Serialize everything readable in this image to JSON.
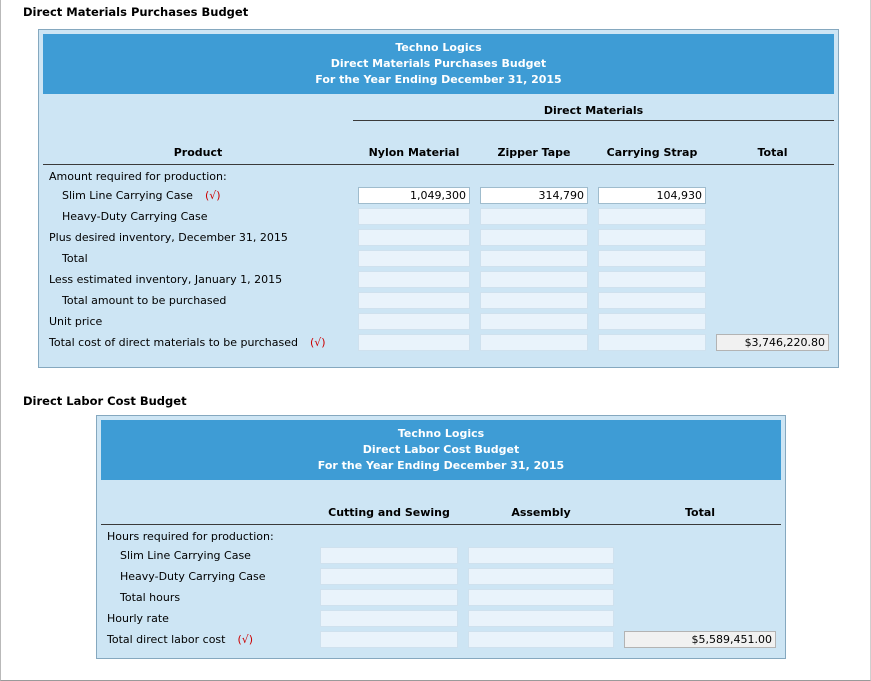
{
  "colors": {
    "statement_header_blue": "#3e9cd5",
    "panel_light_blue": "#cde5f4",
    "check_red": "#cc0000",
    "input_cell_blue": "#e9f3fb"
  },
  "shared": {
    "check_symbol": "(√)"
  },
  "materials_budget": {
    "section_title": "Direct Materials Purchases Budget",
    "statement_header": {
      "company": "Techno Logics",
      "title": "Direct Materials Purchases Budget",
      "period": "For the Year Ending December 31, 2015"
    },
    "group_header": "Direct Materials",
    "columns": [
      "Product",
      "Nylon Material",
      "Zipper Tape",
      "Carrying Strap",
      "Total"
    ],
    "rows": [
      {
        "label": "Amount required for production:",
        "indent": 0,
        "inputs": null
      },
      {
        "label": "Slim Line Carrying Case",
        "indent": 1,
        "check": true,
        "inputs": [
          "1,049,300",
          "314,790",
          "104,930"
        ]
      },
      {
        "label": "Heavy-Duty Carrying Case",
        "indent": 1,
        "inputs": [
          "",
          "",
          ""
        ]
      },
      {
        "label": "Plus desired inventory, December 31, 2015",
        "indent": 0,
        "inputs": [
          "",
          "",
          ""
        ]
      },
      {
        "label": "Total",
        "indent": 1,
        "inputs": [
          "",
          "",
          ""
        ]
      },
      {
        "label": "Less estimated inventory, January 1, 2015",
        "indent": 0,
        "inputs": [
          "",
          "",
          ""
        ]
      },
      {
        "label": "Total amount to be purchased",
        "indent": 1,
        "inputs": [
          "",
          "",
          ""
        ]
      },
      {
        "label": "Unit price",
        "indent": 0,
        "inputs": [
          "",
          "",
          ""
        ]
      },
      {
        "label": "Total cost of direct materials to be purchased",
        "indent": 0,
        "check": true,
        "inputs": [
          "",
          "",
          ""
        ],
        "total": "$3,746,220.80"
      }
    ]
  },
  "labor_budget": {
    "section_title": "Direct Labor Cost Budget",
    "statement_header": {
      "company": "Techno Logics",
      "title": "Direct Labor Cost Budget",
      "period": "For the Year Ending December 31, 2015"
    },
    "columns": [
      "",
      "Cutting and Sewing",
      "Assembly",
      "Total"
    ],
    "rows": [
      {
        "label": "Hours required for production:",
        "indent": 0,
        "inputs": null
      },
      {
        "label": "Slim Line Carrying Case",
        "indent": 1,
        "inputs": [
          "",
          ""
        ]
      },
      {
        "label": "Heavy-Duty Carrying Case",
        "indent": 1,
        "inputs": [
          "",
          ""
        ]
      },
      {
        "label": "Total hours",
        "indent": 1,
        "inputs": [
          "",
          ""
        ]
      },
      {
        "label": "Hourly rate",
        "indent": 0,
        "inputs": [
          "",
          ""
        ]
      },
      {
        "label": "Total direct labor cost",
        "indent": 0,
        "check": true,
        "inputs": [
          "",
          ""
        ],
        "total": "$5,589,451.00"
      }
    ]
  }
}
